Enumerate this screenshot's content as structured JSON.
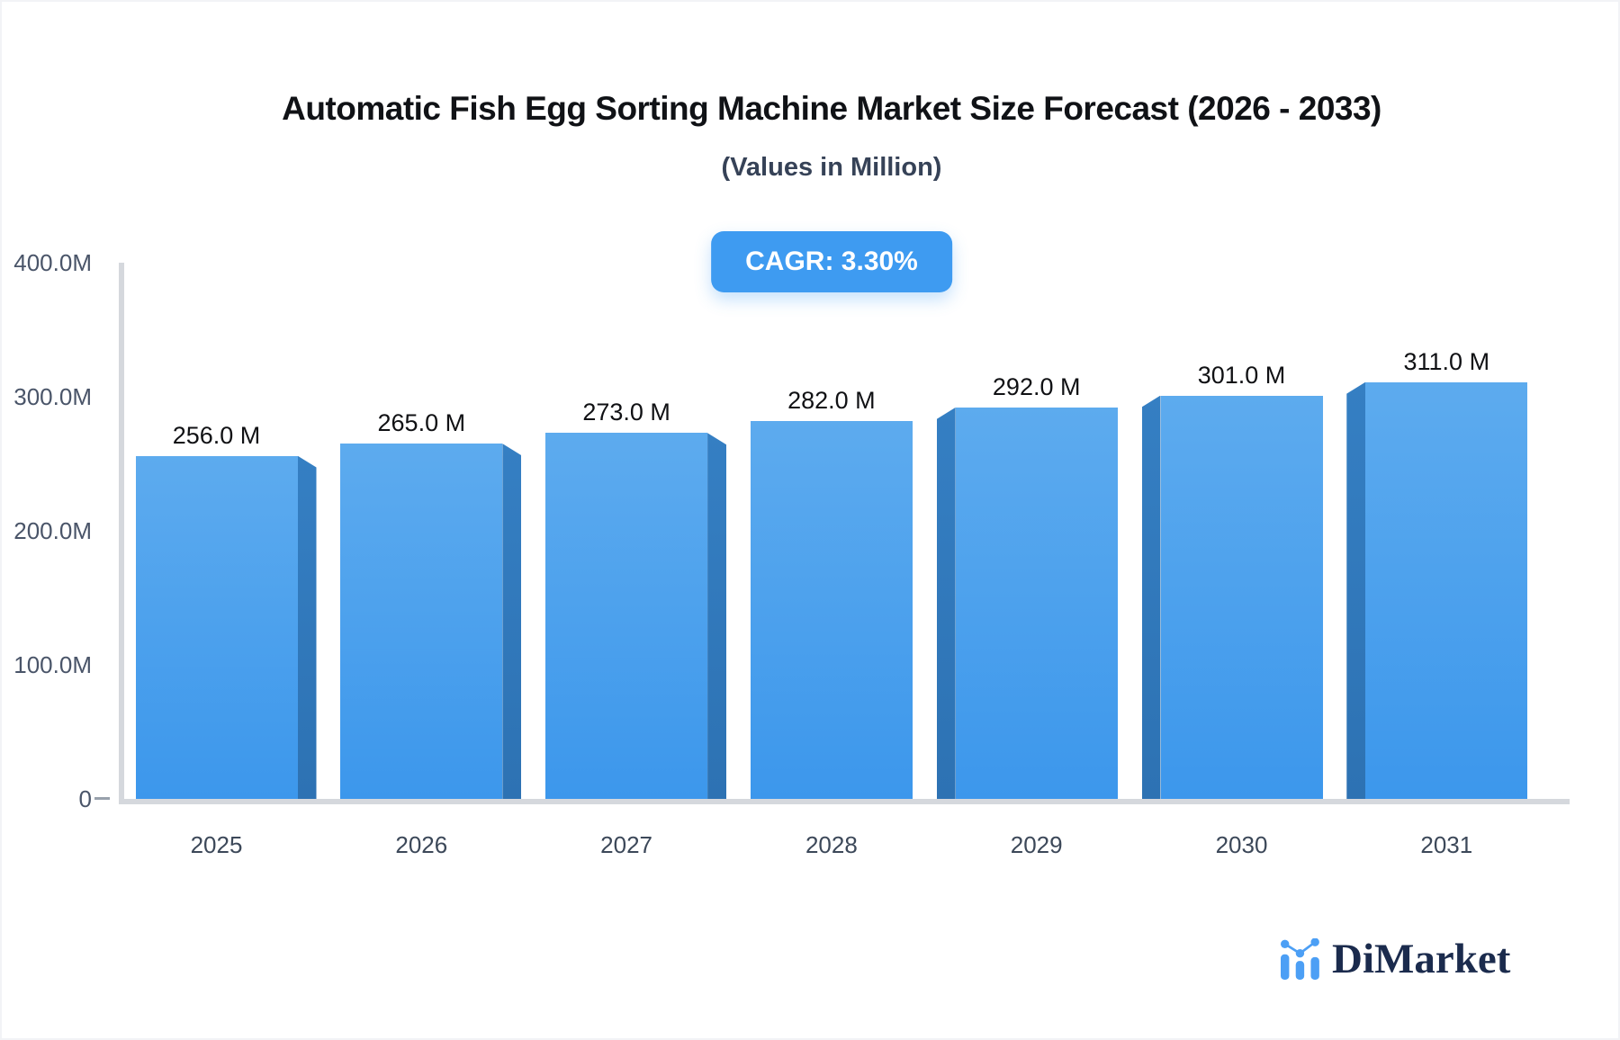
{
  "header": {
    "title": "Automatic Fish Egg Sorting Machine Market Size Forecast (2026 - 2033)",
    "subtitle": "(Values in Million)",
    "cagr_badge": "CAGR: 3.30%"
  },
  "chart_data": {
    "type": "bar",
    "title": "Automatic Fish Egg Sorting Machine Market Size Forecast (2026 - 2033)",
    "subtitle": "(Values in Million)",
    "cagr": "3.30%",
    "unit": "Million",
    "categories": [
      "2025",
      "2026",
      "2027",
      "2028",
      "2029",
      "2030",
      "2031"
    ],
    "values": [
      256.0,
      265.0,
      273.0,
      282.0,
      292.0,
      301.0,
      311.0
    ],
    "value_labels": [
      "256.0 M",
      "265.0 M",
      "273.0 M",
      "282.0 M",
      "292.0 M",
      "301.0 M",
      "311.0 M"
    ],
    "ylim": [
      0,
      400
    ],
    "y_ticks": [
      {
        "label": "400.0M",
        "value": 400
      },
      {
        "label": "300.0M",
        "value": 300
      },
      {
        "label": "200.0M",
        "value": 200
      },
      {
        "label": "100.0M",
        "value": 100
      },
      {
        "label": "0",
        "value": 0
      }
    ],
    "grid": false,
    "legend": false,
    "bar_face_top_color": "#5dabee",
    "bar_face_bottom_color": "#3c97ec",
    "bar_side_color": "#2f76b8",
    "axis_color": "#d5d8dd"
  },
  "branding": {
    "logo_text": "DiMarket",
    "logo_icon": "mini-bar-line-chart-icon",
    "logo_icon_color": "#4c9ff5",
    "logo_text_color": "#1b2b4d"
  },
  "colors": {
    "accent_blue": "#3e9bf1",
    "title_color": "#101216",
    "subtitle_color": "#364257",
    "tick_label_color": "#4a5569",
    "value_label_color": "#101114"
  }
}
